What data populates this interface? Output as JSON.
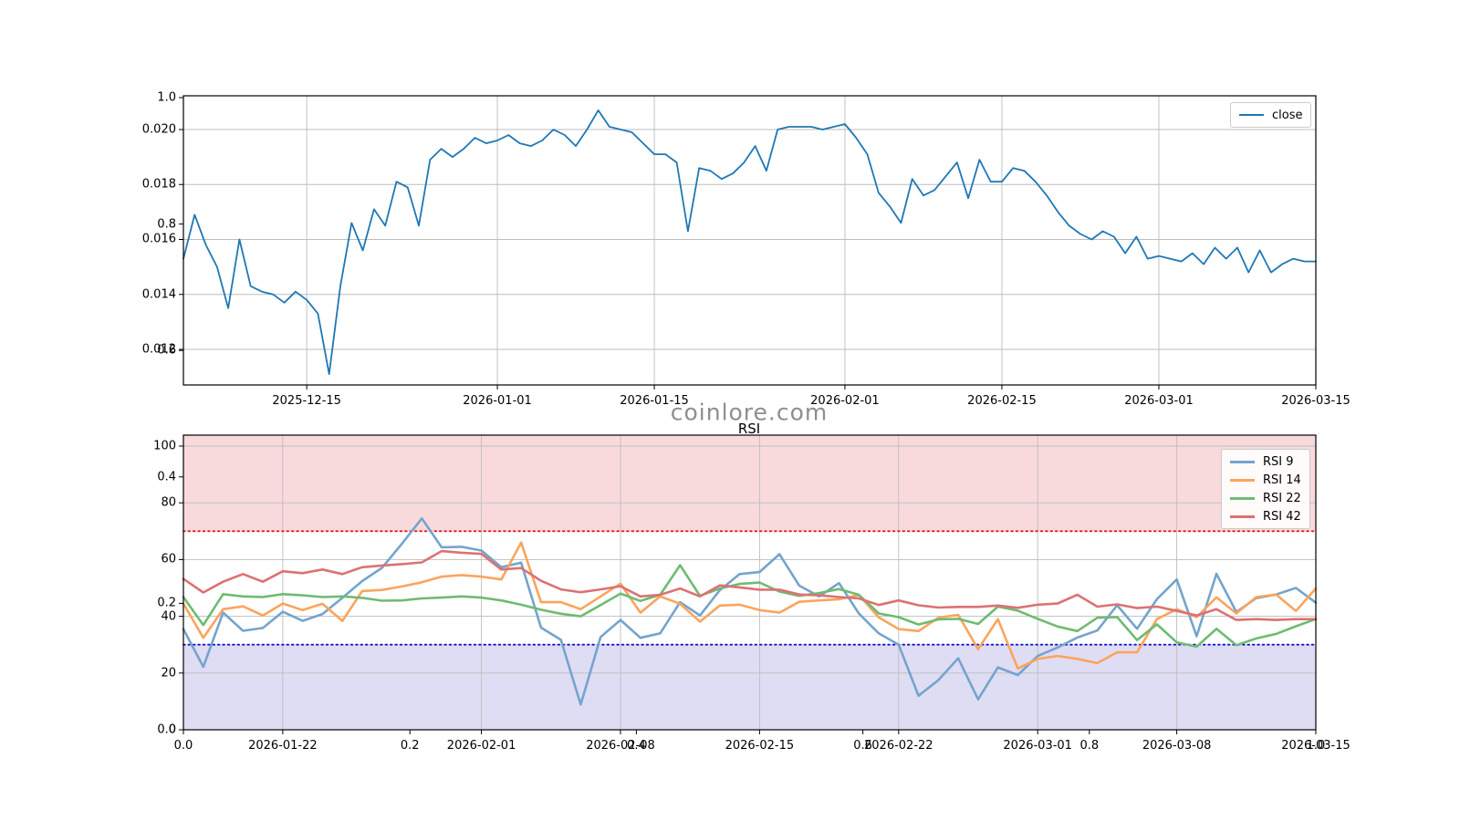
{
  "watermark": "coinlore.com",
  "overlay_axis": {
    "left_labels": [
      "1.0",
      "0.8",
      "0.6",
      "0.4",
      "0.2",
      "0.0"
    ],
    "bottom_labels": [
      "0.0",
      "0.2",
      "0.4",
      "0.6",
      "0.8",
      "1.0"
    ]
  },
  "chart_data": [
    {
      "type": "line",
      "id": "price",
      "title": "",
      "xlabel": "",
      "ylabel": "",
      "x_start_date": "2025-12-04",
      "x_end_date": "2026-03-15",
      "x_interval": "daily",
      "grid": true,
      "legend_position": "upper right",
      "ylim": [
        0.010705,
        0.021228
      ],
      "yticks": [
        {
          "v": 0.012,
          "label": "0.012"
        },
        {
          "v": 0.014,
          "label": "0.014"
        },
        {
          "v": 0.016,
          "label": "0.016"
        },
        {
          "v": 0.018,
          "label": "0.018"
        },
        {
          "v": 0.02,
          "label": "0.020"
        }
      ],
      "xticks": [
        {
          "i": 11,
          "label": "2025-12-15"
        },
        {
          "i": 28,
          "label": "2026-01-01"
        },
        {
          "i": 42,
          "label": "2026-01-15"
        },
        {
          "i": 59,
          "label": "2026-02-01"
        },
        {
          "i": 73,
          "label": "2026-02-15"
        },
        {
          "i": 87,
          "label": "2026-03-01"
        },
        {
          "i": 101,
          "label": "2026-03-15"
        }
      ],
      "series": [
        {
          "name": "close",
          "color": "#1f77b4",
          "linewidth": 1.8,
          "values": [
            0.0153,
            0.0169,
            0.0158,
            0.015,
            0.0135,
            0.016,
            0.0143,
            0.0141,
            0.014,
            0.0137,
            0.0141,
            0.0138,
            0.0133,
            0.0111,
            0.0143,
            0.0166,
            0.0156,
            0.0171,
            0.0165,
            0.0181,
            0.0179,
            0.0165,
            0.0189,
            0.0193,
            0.019,
            0.0193,
            0.0197,
            0.0195,
            0.0196,
            0.0198,
            0.0195,
            0.0194,
            0.0196,
            0.02,
            0.0198,
            0.0194,
            0.02,
            0.0207,
            0.0201,
            0.02,
            0.0199,
            0.0195,
            0.0191,
            0.0191,
            0.0188,
            0.0163,
            0.0186,
            0.0185,
            0.0182,
            0.0184,
            0.0188,
            0.0194,
            0.0185,
            0.02,
            0.0201,
            0.0201,
            0.0201,
            0.02,
            0.0201,
            0.0202,
            0.0197,
            0.0191,
            0.0177,
            0.0172,
            0.0166,
            0.0182,
            0.0176,
            0.0178,
            0.0183,
            0.0188,
            0.0175,
            0.0189,
            0.0181,
            0.0181,
            0.0186,
            0.0185,
            0.0181,
            0.0176,
            0.017,
            0.0165,
            0.0162,
            0.016,
            0.0163,
            0.0161,
            0.0155,
            0.0161,
            0.0153,
            0.0154,
            0.0153,
            0.0152,
            0.0155,
            0.0151,
            0.0157,
            0.0153,
            0.0157,
            0.0148,
            0.0156,
            0.0148,
            0.0151,
            0.0153,
            0.0152,
            0.0152
          ]
        }
      ]
    },
    {
      "type": "line",
      "id": "rsi",
      "title": "RSI",
      "xlabel": "",
      "ylabel": "",
      "x_start_date": "2026-01-17",
      "x_end_date": "2026-03-15",
      "x_interval": "daily",
      "grid": true,
      "legend_position": "upper right",
      "ylim": [
        0,
        103.86
      ],
      "yticks": [
        {
          "v": 0,
          "label": "0"
        },
        {
          "v": 20,
          "label": "20"
        },
        {
          "v": 40,
          "label": "40"
        },
        {
          "v": 60,
          "label": "60"
        },
        {
          "v": 80,
          "label": "80"
        },
        {
          "v": 100,
          "label": "100"
        }
      ],
      "xticks": [
        {
          "i": 5,
          "label": "2026-01-22"
        },
        {
          "i": 15,
          "label": "2026-02-01"
        },
        {
          "i": 22,
          "label": "2026-02-08"
        },
        {
          "i": 29,
          "label": "2026-02-15"
        },
        {
          "i": 36,
          "label": "2026-02-22"
        },
        {
          "i": 43,
          "label": "2026-03-01"
        },
        {
          "i": 50,
          "label": "2026-03-08"
        },
        {
          "i": 57,
          "label": "2026-03-15"
        }
      ],
      "bands": [
        {
          "from": 70,
          "to": 103.86,
          "color": "#f9dadc",
          "meaning": "overbought"
        },
        {
          "from": 0,
          "to": 30,
          "color": "#dfddf3",
          "meaning": "oversold"
        }
      ],
      "hlines": [
        {
          "y": 70,
          "color": "#e51919",
          "style": "dotted"
        },
        {
          "y": 30,
          "color": "#1414cc",
          "style": "dotted"
        }
      ],
      "series": [
        {
          "name": "RSI 9",
          "color": "#74a4cd",
          "linewidth": 2.6,
          "values": [
            35.5,
            22.2,
            41.3,
            34.9,
            35.9,
            41.6,
            38.4,
            40.8,
            46.5,
            52.4,
            57.1,
            65.6,
            74.5,
            64.3,
            64.5,
            63.2,
            57.3,
            58.9,
            36.0,
            31.7,
            8.9,
            32.7,
            38.7,
            32.4,
            34.0,
            45.0,
            40.3,
            49.2,
            54.9,
            55.6,
            61.9,
            50.8,
            47.0,
            51.7,
            41.0,
            34.0,
            30.0,
            12.0,
            17.5,
            25.2,
            10.7,
            22.0,
            19.3,
            26.0,
            29.0,
            32.5,
            35.0,
            43.9,
            35.6,
            46.0,
            53.0,
            33.0,
            55.0,
            41.5,
            46.4,
            47.7,
            50.0,
            44.8
          ]
        },
        {
          "name": "RSI 14",
          "color": "#fca45c",
          "linewidth": 2.6,
          "values": [
            44.5,
            32.4,
            42.5,
            43.5,
            40.3,
            44.5,
            42.2,
            44.4,
            38.4,
            48.9,
            49.3,
            50.5,
            52.0,
            54.0,
            54.5,
            54.0,
            53.0,
            66.0,
            45.0,
            45.0,
            42.5,
            47.0,
            51.5,
            41.3,
            47.0,
            44.4,
            38.1,
            43.8,
            44.1,
            42.2,
            41.3,
            45.1,
            45.6,
            46.0,
            47.5,
            39.6,
            35.5,
            34.8,
            39.5,
            40.5,
            28.4,
            39.0,
            21.6,
            25.0,
            26.0,
            25.0,
            23.5,
            27.3,
            27.3,
            39.0,
            42.5,
            39.7,
            46.7,
            41.0,
            46.8,
            47.7,
            41.9,
            49.8
          ]
        },
        {
          "name": "RSI 22",
          "color": "#6fbb72",
          "linewidth": 2.6,
          "values": [
            46.8,
            36.9,
            47.8,
            47.0,
            46.8,
            47.8,
            47.4,
            46.8,
            47.0,
            46.5,
            45.5,
            45.6,
            46.3,
            46.6,
            47.0,
            46.6,
            45.6,
            44.1,
            42.3,
            40.9,
            40.0,
            44.0,
            48.0,
            45.4,
            47.6,
            58.0,
            47.2,
            49.8,
            51.4,
            51.9,
            48.7,
            47.2,
            48.2,
            49.6,
            47.6,
            41.0,
            39.7,
            37.1,
            38.9,
            39.1,
            37.3,
            43.4,
            42.0,
            39.1,
            36.4,
            34.8,
            39.5,
            39.7,
            31.6,
            37.2,
            30.8,
            29.3,
            35.6,
            29.8,
            32.2,
            33.8,
            36.5,
            39.0
          ]
        },
        {
          "name": "RSI 42",
          "color": "#dc7273",
          "linewidth": 2.6,
          "values": [
            53.2,
            48.4,
            52.2,
            54.9,
            52.2,
            55.9,
            55.2,
            56.5,
            54.9,
            57.3,
            57.9,
            58.4,
            59.0,
            63.0,
            62.4,
            62.0,
            56.5,
            57.0,
            52.5,
            49.5,
            48.5,
            49.5,
            50.6,
            47.0,
            47.6,
            49.8,
            47.0,
            50.9,
            50.2,
            49.4,
            49.4,
            47.7,
            47.4,
            46.8,
            46.3,
            44.0,
            45.6,
            43.9,
            43.1,
            43.3,
            43.3,
            43.8,
            43.0,
            44.1,
            44.5,
            47.6,
            43.4,
            44.2,
            42.9,
            43.4,
            41.9,
            40.3,
            42.5,
            38.7,
            39.0,
            38.7,
            39.0,
            39.0
          ]
        }
      ]
    }
  ]
}
